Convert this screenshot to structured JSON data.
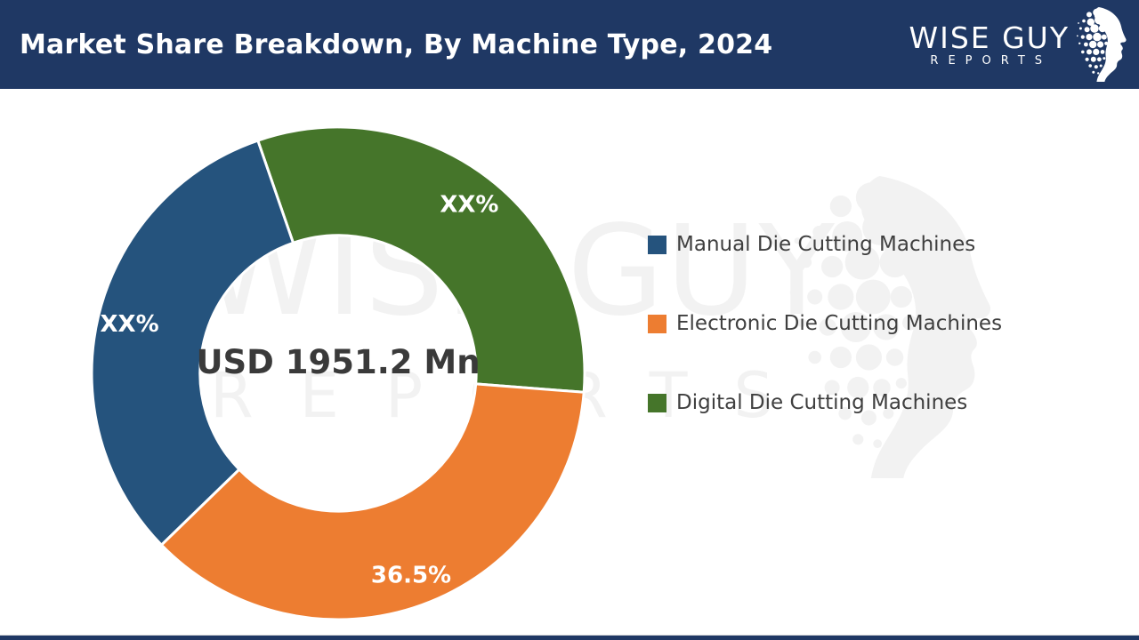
{
  "header": {
    "title": "Market Share Breakdown, By Machine Type, 2024",
    "logo": {
      "name": "Wise Guy Reports",
      "line1": "WISE GUY",
      "line2": "REPORTS"
    }
  },
  "watermark": {
    "line1": "WISE GUY",
    "line2": "REPORTS"
  },
  "chart_data": {
    "type": "pie",
    "subtype": "donut",
    "title": "Market Share Breakdown, By Machine Type, 2024",
    "center_label": "USD 1951.2 Mn",
    "unit": "%",
    "legend_position": "right",
    "direction": "clockwise",
    "start_angle_deg": -19,
    "inner_radius_ratio": 0.56,
    "label_radius_ratio": 0.87,
    "draw_order": [
      2,
      1,
      0
    ],
    "segments": [
      {
        "name": "Manual Die Cutting Machines",
        "value_pct": 32,
        "display_label": "XX%",
        "color": "#25537d"
      },
      {
        "name": "Electronic Die Cutting Machines",
        "value_pct": 36.5,
        "display_label": "36.5%",
        "color": "#ed7d31"
      },
      {
        "name": "Digital Die Cutting Machines",
        "value_pct": 31.5,
        "display_label": "XX%",
        "color": "#45752a"
      }
    ]
  },
  "colors": {
    "page_bg": "#ffffff",
    "header_bg": "#1f3864",
    "footer_bg": "#1f3864",
    "slice_label": "#ffffff",
    "center_label": "#3a3a3a",
    "legend_text": "#3f3f3f",
    "watermark": "#f2f2f2"
  }
}
